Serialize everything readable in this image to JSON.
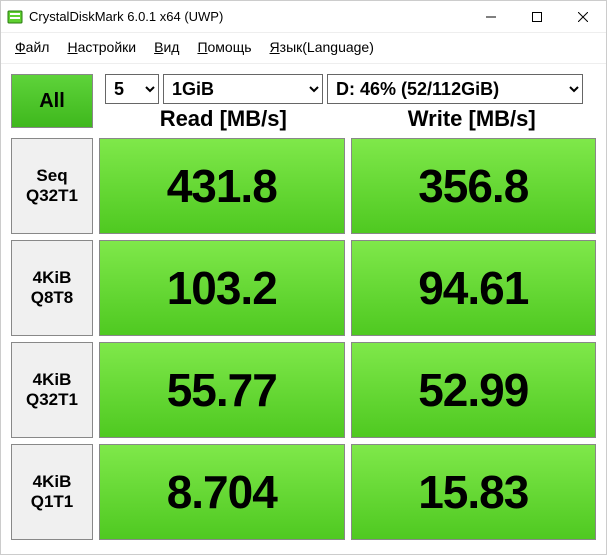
{
  "window": {
    "title": "CrystalDiskMark 6.0.1 x64 (UWP)"
  },
  "menu": {
    "file": "Файл",
    "settings": "Настройки",
    "view": "Вид",
    "help": "Помощь",
    "language": "Язык(Language)"
  },
  "controls": {
    "all_label": "All",
    "runs": "5",
    "size": "1GiB",
    "disk": "D: 46% (52/112GiB)"
  },
  "headers": {
    "read": "Read [MB/s]",
    "write": "Write [MB/s]"
  },
  "tests": [
    {
      "label_line1": "Seq",
      "label_line2": "Q32T1",
      "read": "431.8",
      "write": "356.8",
      "read_fill": "100%",
      "write_fill": "100%"
    },
    {
      "label_line1": "4KiB",
      "label_line2": "Q8T8",
      "read": "103.2",
      "write": "94.61",
      "read_fill": "100%",
      "write_fill": "100%"
    },
    {
      "label_line1": "4KiB",
      "label_line2": "Q32T1",
      "read": "55.77",
      "write": "52.99",
      "read_fill": "100%",
      "write_fill": "100%"
    },
    {
      "label_line1": "4KiB",
      "label_line2": "Q1T1",
      "read": "8.704",
      "write": "15.83",
      "read_fill": "100%",
      "write_fill": "100%"
    }
  ],
  "colors": {
    "accent_green_top": "#7fe84a",
    "accent_green_bottom": "#4fc921",
    "border": "#888888",
    "text": "#000000",
    "background": "#ffffff"
  }
}
